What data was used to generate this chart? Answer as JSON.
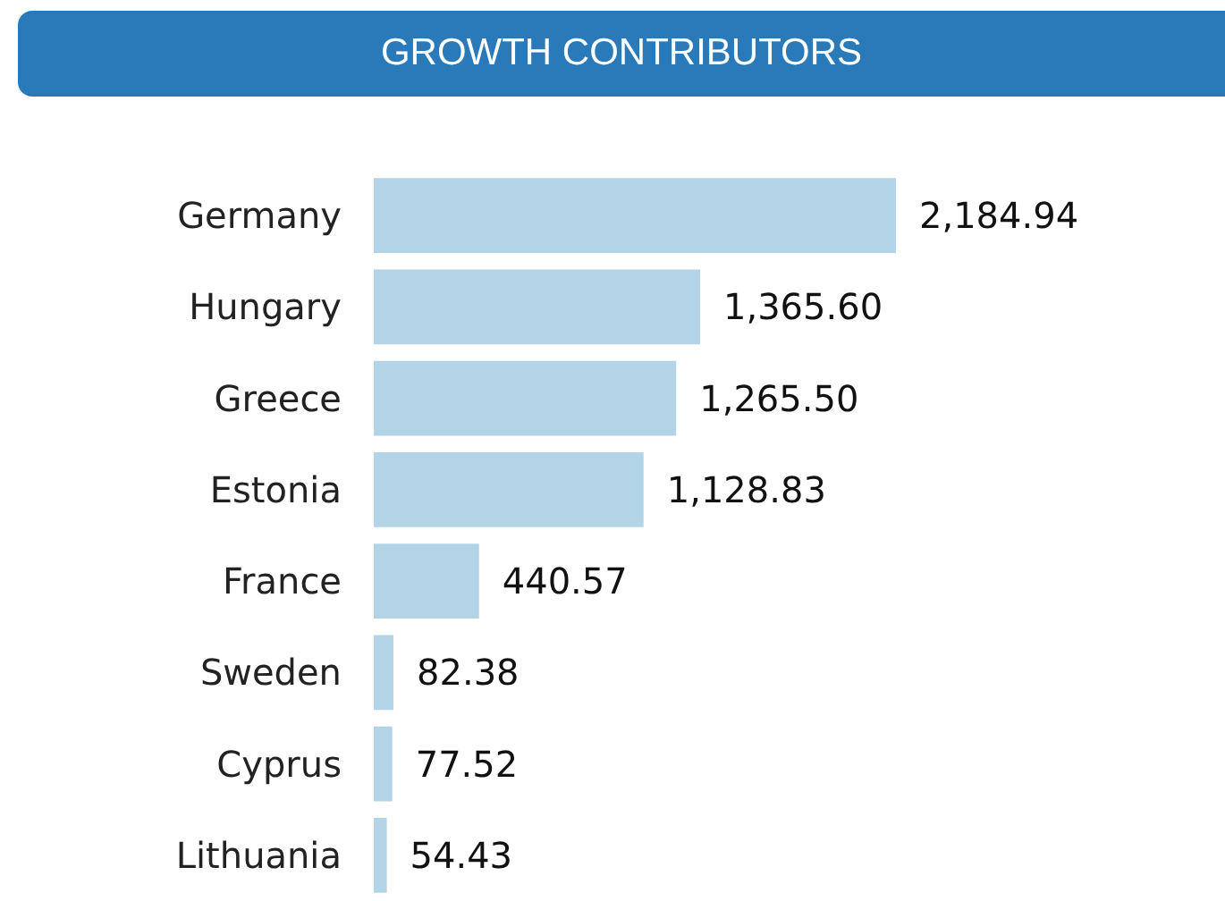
{
  "chart_data": {
    "type": "bar",
    "title": "GROWTH CONTRIBUTORS",
    "orientation": "horizontal",
    "categories": [
      "Germany",
      "Hungary",
      "Greece",
      "Estonia",
      "France",
      "Sweden",
      "Cyprus",
      "Lithuania"
    ],
    "values": [
      2184.94,
      1365.6,
      1265.5,
      1128.83,
      440.57,
      82.38,
      77.52,
      54.43
    ],
    "value_labels": [
      "2,184.94",
      "1,365.60",
      "1,265.50",
      "1,128.83",
      "440.57",
      "82.38",
      "77.52",
      "54.43"
    ],
    "color": "#b3d4e6",
    "tick_labels": "y"
  }
}
